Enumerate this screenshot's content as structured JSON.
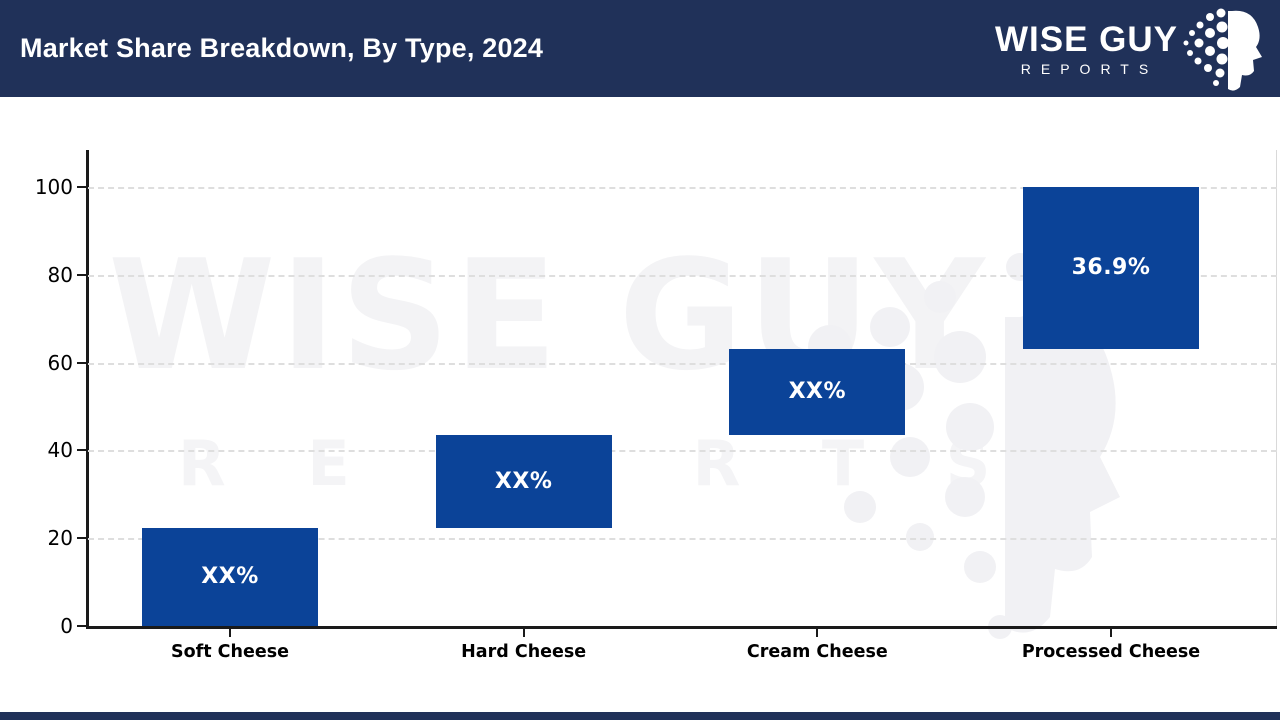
{
  "header": {
    "title": "Market Share Breakdown, By Type, 2024",
    "bg_color": "#203159",
    "logo": {
      "line1": "WISE GUY",
      "line2": "REPORTS"
    }
  },
  "footer": {
    "bg_color": "#203159"
  },
  "chart_data": {
    "type": "bar",
    "subtype": "waterfall",
    "title": "Market Share Breakdown, By Type, 2024",
    "categories": [
      "Soft Cheese",
      "Hard Cheese",
      "Cream Cheese",
      "Processed Cheese"
    ],
    "segments": [
      {
        "category": "Soft Cheese",
        "start": 0,
        "end": 22.4,
        "label": "XX%"
      },
      {
        "category": "Hard Cheese",
        "start": 22.4,
        "end": 43.5,
        "label": "XX%"
      },
      {
        "category": "Cream Cheese",
        "start": 43.5,
        "end": 63.1,
        "label": "XX%"
      },
      {
        "category": "Processed Cheese",
        "start": 63.1,
        "end": 100,
        "label": "36.9%"
      }
    ],
    "y_ticks": [
      0,
      20,
      40,
      60,
      80,
      100
    ],
    "ylim": [
      0,
      108.4
    ],
    "xlabel": "",
    "ylabel": "",
    "bar_color": "#0b4398",
    "grid": "horizontal-dashed",
    "legend": "none",
    "watermark": {
      "line1": "WISE GUY",
      "line2": "R E P O R T S"
    }
  }
}
